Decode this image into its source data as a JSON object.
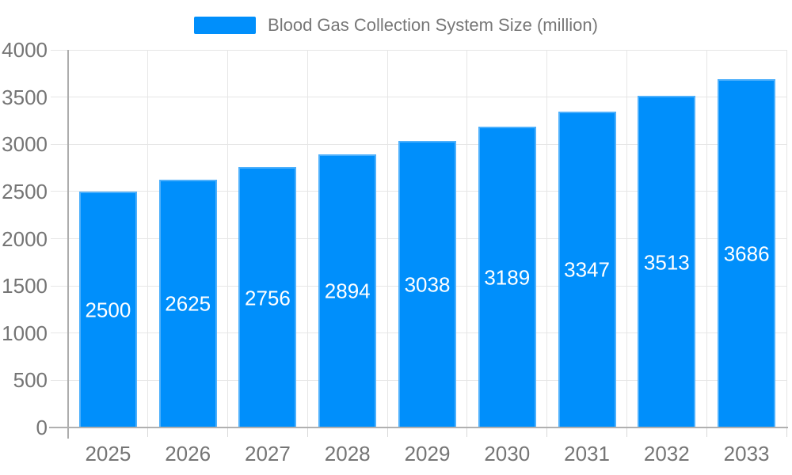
{
  "chart_data": {
    "type": "bar",
    "title": "Blood Gas Collection System Size (million)",
    "categories": [
      "2025",
      "2026",
      "2027",
      "2028",
      "2029",
      "2030",
      "2031",
      "2032",
      "2033"
    ],
    "series": [
      {
        "name": "Blood Gas Collection System Size (million)",
        "values": [
          2500,
          2625,
          2756,
          2894,
          3038,
          3189,
          3347,
          3513,
          3686
        ]
      }
    ],
    "xlabel": "",
    "ylabel": "",
    "ylim": [
      0,
      4000
    ],
    "yticks": [
      0,
      500,
      1000,
      1500,
      2000,
      2500,
      3000,
      3500,
      4000
    ],
    "grid": true,
    "legend_position": "top-center",
    "bar_value_labels_position": "inside-center",
    "colors": {
      "bar": "#008FFB",
      "bar_value_label": "#FFFFFF",
      "axis_label": "#757575",
      "legend_label": "#777777",
      "gridline": "#E6E6E6",
      "tick": "#D9D9D9",
      "y_axis_line": "#ADADAD",
      "x_axis_line": "#B0B0B0",
      "background": "#FFFFFF"
    }
  }
}
